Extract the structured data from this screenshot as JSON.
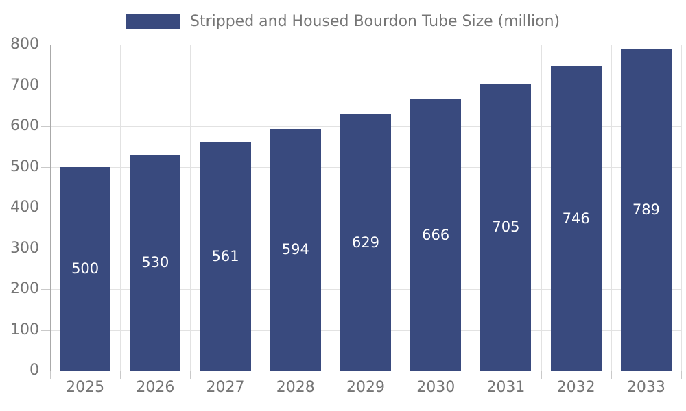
{
  "legend": {
    "label": "Stripped and Housed Bourdon Tube Size (million)"
  },
  "chart_data": {
    "type": "bar",
    "title": "",
    "xlabel": "",
    "ylabel": "",
    "categories": [
      "2025",
      "2026",
      "2027",
      "2028",
      "2029",
      "2030",
      "2031",
      "2032",
      "2033"
    ],
    "series": [
      {
        "name": "Stripped and Housed Bourdon Tube Size (million)",
        "values": [
          500,
          530,
          561,
          594,
          629,
          666,
          705,
          746,
          789
        ]
      }
    ],
    "ylim": [
      0,
      800
    ],
    "yticks": [
      0,
      100,
      200,
      300,
      400,
      500,
      600,
      700,
      800
    ],
    "grid": true,
    "legend_position": "top",
    "colors": {
      "bar": "#394A7E",
      "bar_label": "#FFFFFF",
      "axis_text": "#757575",
      "grid_line": "#E2E2E2",
      "axis_line": "#AAAAAA",
      "tick_line": "#C9C9C9",
      "background": "#FFFFFF"
    }
  }
}
